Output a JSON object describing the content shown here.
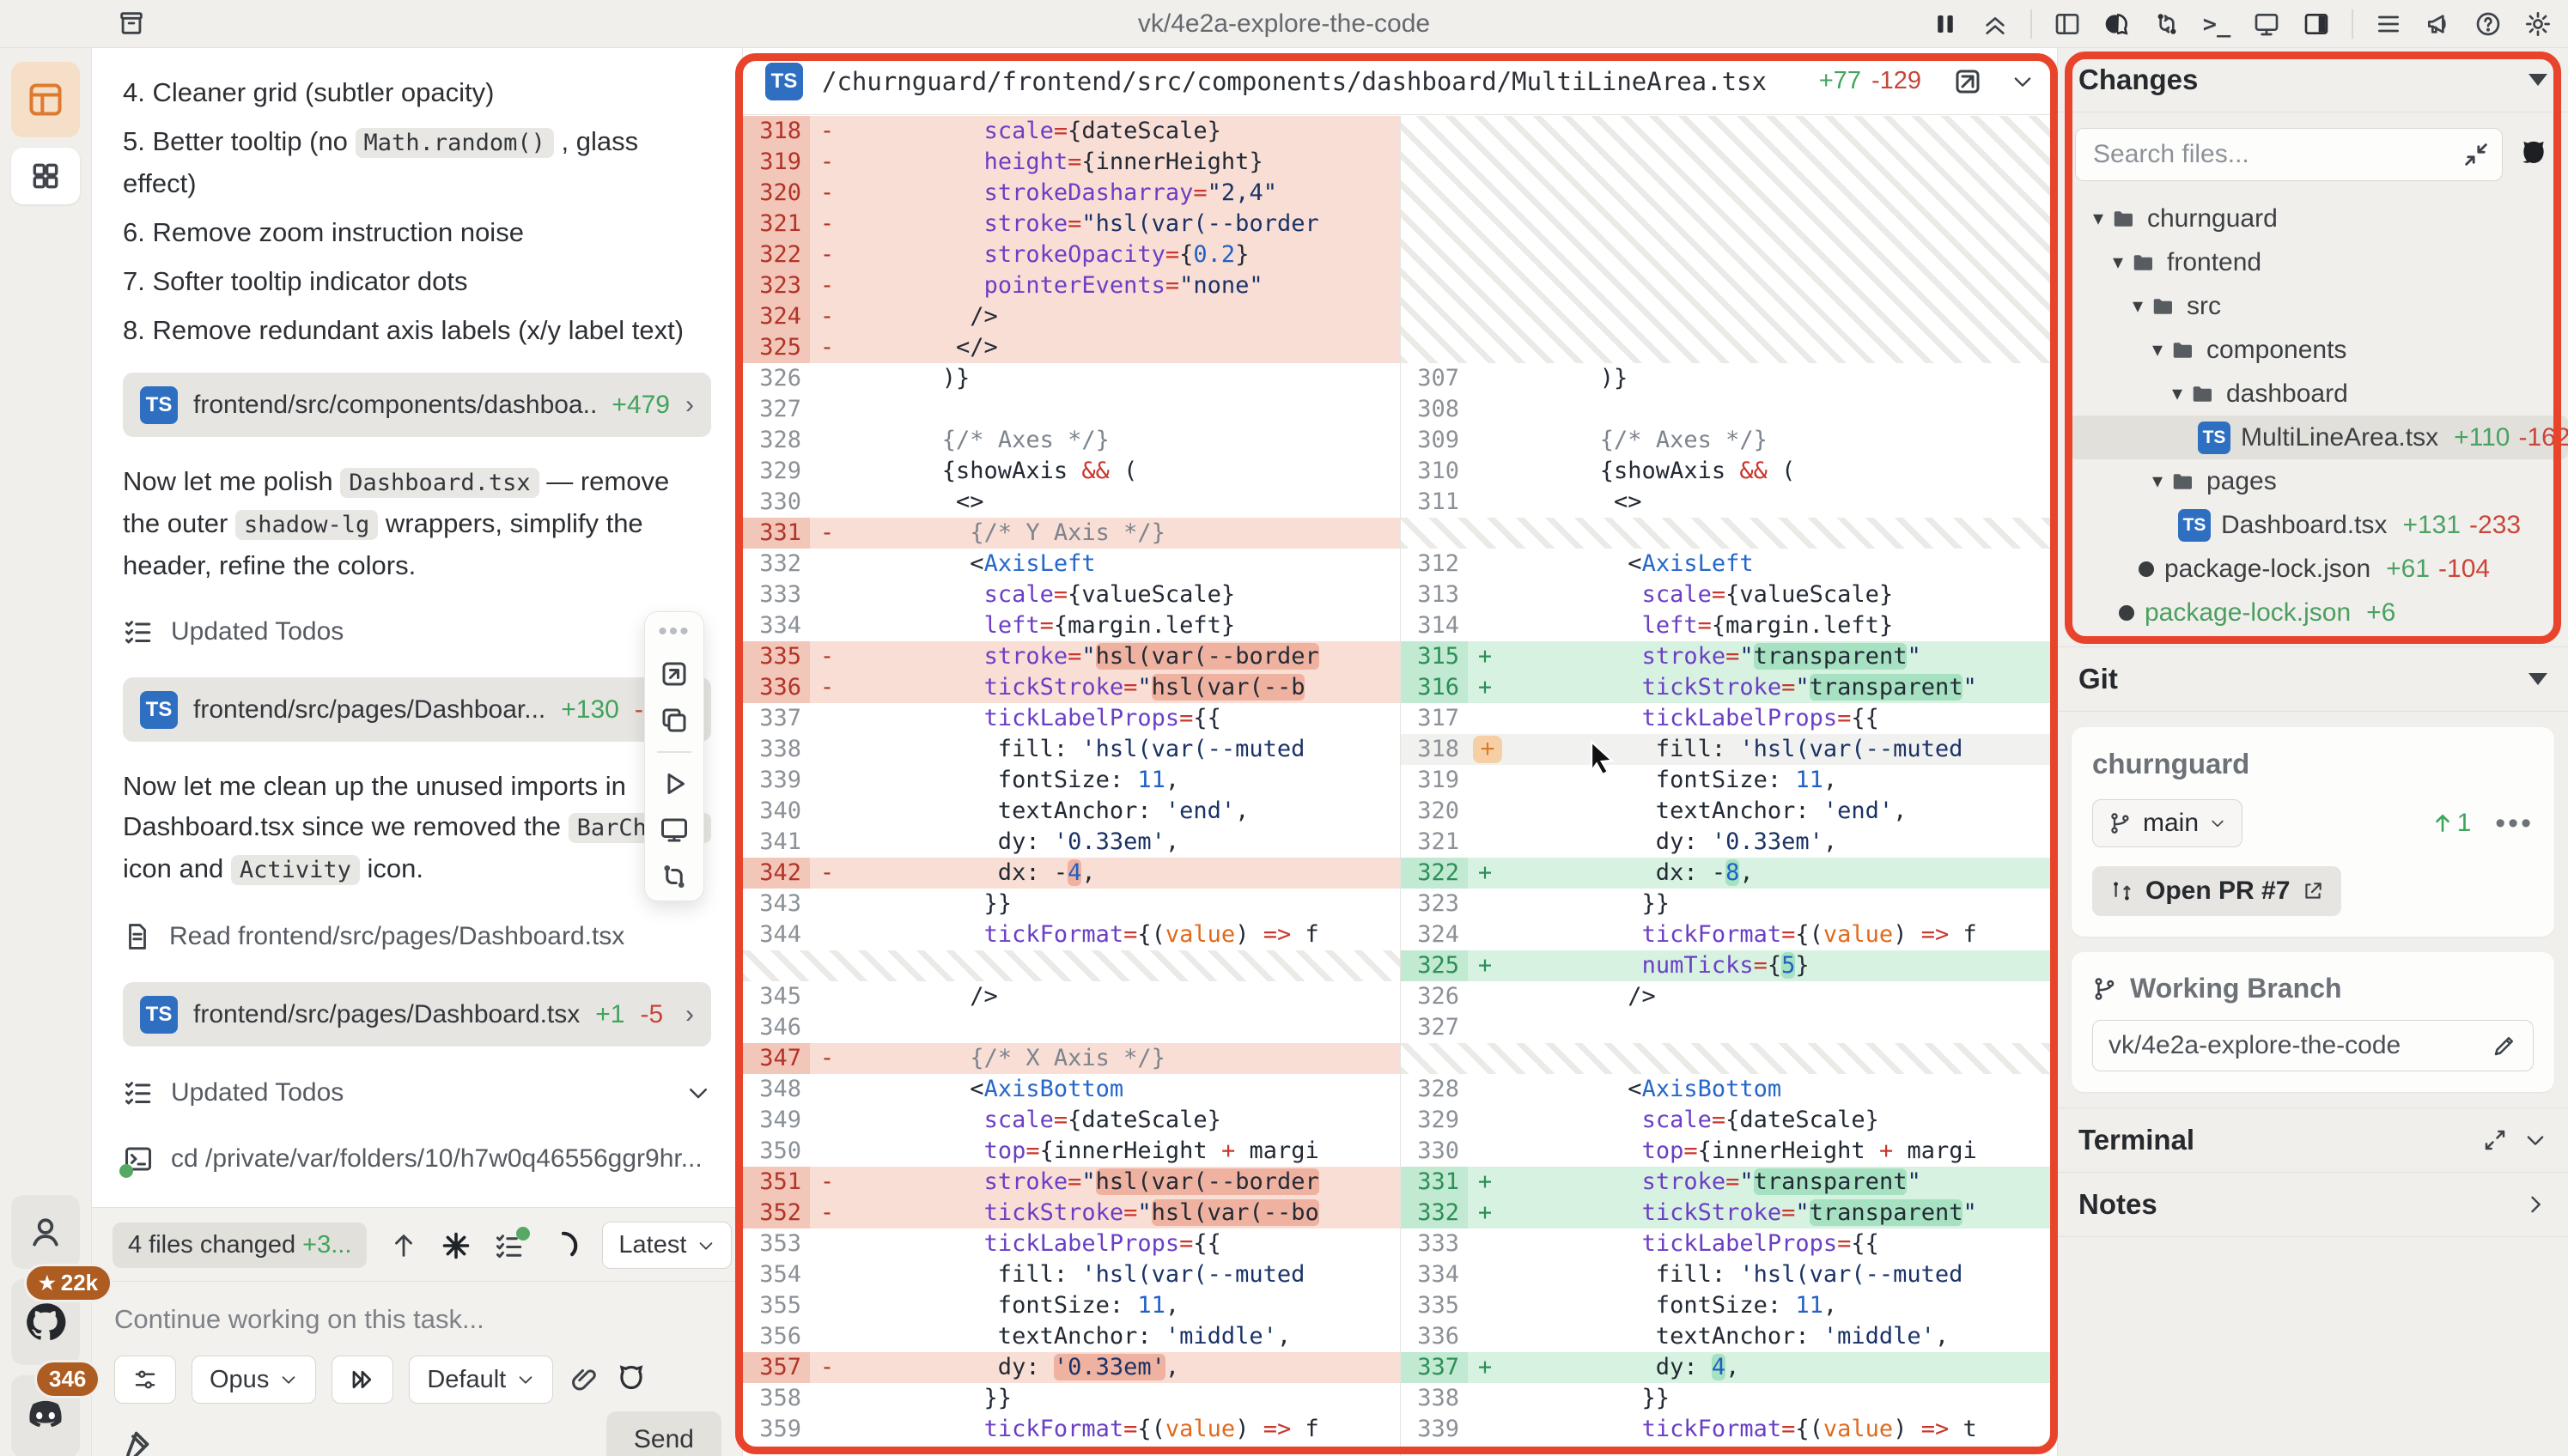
{
  "topbar": {
    "title": "vk/4e2a-explore-the-code"
  },
  "rail": {
    "github_badge": "22k",
    "discord_badge": "346"
  },
  "chat": {
    "list_items": [
      {
        "parts": [
          {
            "t": "4. Cleaner grid (subtler opacity)"
          }
        ]
      },
      {
        "parts": [
          {
            "t": "5. Better tooltip (no "
          },
          {
            "t": "Math.random()",
            "c": 1
          },
          {
            "t": " , glass effect)"
          }
        ]
      },
      {
        "parts": [
          {
            "t": "6. Remove zoom instruction noise"
          }
        ]
      },
      {
        "parts": [
          {
            "t": "7. Softer tooltip indicator dots"
          }
        ]
      },
      {
        "parts": [
          {
            "t": "8. Remove redundant axis labels (x/y label text)"
          }
        ]
      }
    ],
    "para1": {
      "parts": [
        {
          "t": "Now let me polish "
        },
        {
          "t": "Dashboard.tsx",
          "c": 1
        },
        {
          "t": " — remove the outer "
        },
        {
          "t": "shadow-lg",
          "c": 1
        },
        {
          "t": " wrappers, simplify the header, refine the colors."
        }
      ]
    },
    "para2": {
      "parts": [
        {
          "t": "Now let me clean up the unused imports in Dashboard.tsx since we removed the "
        },
        {
          "t": "BarChart3",
          "c": 1
        },
        {
          "t": " icon and "
        },
        {
          "t": "Activity",
          "c": 1
        },
        {
          "t": " icon."
        }
      ]
    },
    "chips": [
      {
        "file": "frontend/src/components/dashboa...",
        "add": "+479",
        "rem": "",
        "chev": "›"
      },
      {
        "file": "frontend/src/pages/Dashboar...",
        "add": "+130",
        "rem": "-22",
        "chev": "›"
      },
      {
        "file": "frontend/src/pages/Dashboard.tsx",
        "add": "+1",
        "rem": "-5",
        "chev": "›"
      }
    ],
    "todos1": "Updated Todos",
    "todos2": "Updated Todos",
    "read_label": "Read frontend/src/pages/Dashboard.tsx",
    "terminal_cmd": "cd /private/var/folders/10/h7w0q46556ggr9hr..."
  },
  "composer": {
    "files_chip": "4 files changed",
    "files_plus": "+3...",
    "latest": "Latest",
    "placeholder": "Continue working on this task...",
    "model": "Opus",
    "mode": "Default",
    "send": "Send"
  },
  "diff": {
    "path": "/churnguard/frontend/src/components/dashboard/MultiLineArea.tsx",
    "added": "+77",
    "removed": "-129",
    "rows": [
      {
        "l": {
          "n": "318",
          "s": "-",
          "k": "del",
          "c": "          scale={dateScale}"
        },
        "r": {
          "k": "hatch"
        }
      },
      {
        "l": {
          "n": "319",
          "s": "-",
          "k": "del",
          "c": "          height={innerHeight}"
        },
        "r": {
          "k": "hatch"
        }
      },
      {
        "l": {
          "n": "320",
          "s": "-",
          "k": "del",
          "c": "          strokeDasharray=\"2,4\""
        },
        "r": {
          "k": "hatch"
        }
      },
      {
        "l": {
          "n": "321",
          "s": "-",
          "k": "del",
          "c": "          stroke=\"hsl(var(--border"
        },
        "r": {
          "k": "hatch"
        }
      },
      {
        "l": {
          "n": "322",
          "s": "-",
          "k": "del",
          "c": "          strokeOpacity={0.2}"
        },
        "r": {
          "k": "hatch"
        }
      },
      {
        "l": {
          "n": "323",
          "s": "-",
          "k": "del",
          "c": "          pointerEvents=\"none\""
        },
        "r": {
          "k": "hatch"
        }
      },
      {
        "l": {
          "n": "324",
          "s": "-",
          "k": "del",
          "c": "         />"
        },
        "r": {
          "k": "hatch"
        }
      },
      {
        "l": {
          "n": "325",
          "s": "-",
          "k": "del",
          "c": "        </>"
        },
        "r": {
          "k": "hatch"
        }
      },
      {
        "l": {
          "n": "326",
          "k": "ctx",
          "c": "       )}"
        },
        "r": {
          "n": "307",
          "k": "ctx",
          "c": "       )}"
        }
      },
      {
        "l": {
          "n": "327",
          "k": "ctx",
          "c": ""
        },
        "r": {
          "n": "308",
          "k": "ctx",
          "c": ""
        }
      },
      {
        "l": {
          "n": "328",
          "k": "ctx",
          "c": "       {/* Axes */}"
        },
        "r": {
          "n": "309",
          "k": "ctx",
          "c": "       {/* Axes */}"
        }
      },
      {
        "l": {
          "n": "329",
          "k": "ctx",
          "c": "       {showAxis && ("
        },
        "r": {
          "n": "310",
          "k": "ctx",
          "c": "       {showAxis && ("
        }
      },
      {
        "l": {
          "n": "330",
          "k": "ctx",
          "c": "        <>"
        },
        "r": {
          "n": "311",
          "k": "ctx",
          "c": "        <>"
        }
      },
      {
        "l": {
          "n": "331",
          "s": "-",
          "k": "del",
          "c": "         {/* Y Axis */}"
        },
        "r": {
          "k": "hatch"
        }
      },
      {
        "l": {
          "n": "332",
          "k": "ctx",
          "c": "         <AxisLeft"
        },
        "r": {
          "n": "312",
          "k": "ctx",
          "c": "         <AxisLeft"
        }
      },
      {
        "l": {
          "n": "333",
          "k": "ctx",
          "c": "          scale={valueScale}"
        },
        "r": {
          "n": "313",
          "k": "ctx",
          "c": "          scale={valueScale}"
        }
      },
      {
        "l": {
          "n": "334",
          "k": "ctx",
          "c": "          left={margin.left}"
        },
        "r": {
          "n": "314",
          "k": "ctx",
          "c": "          left={margin.left}"
        }
      },
      {
        "l": {
          "n": "335",
          "s": "-",
          "k": "del",
          "c": "          stroke=\"hsl(var(--border",
          "h": "hsl(var(--border"
        },
        "r": {
          "n": "315",
          "s": "+",
          "k": "add",
          "c": "          stroke=\"transparent\"",
          "h": "transparent"
        }
      },
      {
        "l": {
          "n": "336",
          "s": "-",
          "k": "del",
          "c": "          tickStroke=\"hsl(var(--b",
          "h": "hsl(var(--b"
        },
        "r": {
          "n": "316",
          "s": "+",
          "k": "add",
          "c": "          tickStroke=\"transparent\"",
          "h": "transparent"
        }
      },
      {
        "l": {
          "n": "337",
          "k": "ctx",
          "c": "          tickLabelProps={{"
        },
        "r": {
          "n": "317",
          "k": "ctx",
          "c": "          tickLabelProps={{"
        }
      },
      {
        "l": {
          "n": "338",
          "k": "ctx",
          "c": "           fill: 'hsl(var(--muted"
        },
        "r": {
          "n": "318",
          "k": "ctx",
          "hv": 1,
          "p": 1,
          "c": "           fill: 'hsl(var(--muted"
        }
      },
      {
        "l": {
          "n": "339",
          "k": "ctx",
          "c": "           fontSize: 11,"
        },
        "r": {
          "n": "319",
          "k": "ctx",
          "c": "           fontSize: 11,"
        }
      },
      {
        "l": {
          "n": "340",
          "k": "ctx",
          "c": "           textAnchor: 'end',"
        },
        "r": {
          "n": "320",
          "k": "ctx",
          "c": "           textAnchor: 'end',"
        }
      },
      {
        "l": {
          "n": "341",
          "k": "ctx",
          "c": "           dy: '0.33em',"
        },
        "r": {
          "n": "321",
          "k": "ctx",
          "c": "           dy: '0.33em',"
        }
      },
      {
        "l": {
          "n": "342",
          "s": "-",
          "k": "del",
          "c": "           dx: -4,",
          "h": "4"
        },
        "r": {
          "n": "322",
          "s": "+",
          "k": "add",
          "c": "           dx: -8,",
          "h": "8"
        }
      },
      {
        "l": {
          "n": "343",
          "k": "ctx",
          "c": "          }}"
        },
        "r": {
          "n": "323",
          "k": "ctx",
          "c": "          }}"
        }
      },
      {
        "l": {
          "n": "344",
          "k": "ctx",
          "c": "          tickFormat={(value) => f"
        },
        "r": {
          "n": "324",
          "k": "ctx",
          "c": "          tickFormat={(value) => f"
        }
      },
      {
        "l": {
          "k": "hatch"
        },
        "r": {
          "n": "325",
          "s": "+",
          "k": "add",
          "c": "          numTicks={5}",
          "h": "5"
        }
      },
      {
        "l": {
          "n": "345",
          "k": "ctx",
          "c": "         />"
        },
        "r": {
          "n": "326",
          "k": "ctx",
          "c": "         />"
        }
      },
      {
        "l": {
          "n": "346",
          "k": "ctx",
          "c": ""
        },
        "r": {
          "n": "327",
          "k": "ctx",
          "c": ""
        }
      },
      {
        "l": {
          "n": "347",
          "s": "-",
          "k": "del",
          "c": "         {/* X Axis */}"
        },
        "r": {
          "k": "hatch"
        }
      },
      {
        "l": {
          "n": "348",
          "k": "ctx",
          "c": "         <AxisBottom"
        },
        "r": {
          "n": "328",
          "k": "ctx",
          "c": "         <AxisBottom"
        }
      },
      {
        "l": {
          "n": "349",
          "k": "ctx",
          "c": "          scale={dateScale}"
        },
        "r": {
          "n": "329",
          "k": "ctx",
          "c": "          scale={dateScale}"
        }
      },
      {
        "l": {
          "n": "350",
          "k": "ctx",
          "c": "          top={innerHeight + margi"
        },
        "r": {
          "n": "330",
          "k": "ctx",
          "c": "          top={innerHeight + margi"
        }
      },
      {
        "l": {
          "n": "351",
          "s": "-",
          "k": "del",
          "c": "          stroke=\"hsl(var(--border",
          "h": "hsl(var(--border"
        },
        "r": {
          "n": "331",
          "s": "+",
          "k": "add",
          "c": "          stroke=\"transparent\"",
          "h": "transparent"
        }
      },
      {
        "l": {
          "n": "352",
          "s": "-",
          "k": "del",
          "c": "          tickStroke=\"hsl(var(--bo",
          "h": "hsl(var(--bo"
        },
        "r": {
          "n": "332",
          "s": "+",
          "k": "add",
          "c": "          tickStroke=\"transparent\"",
          "h": "transparent"
        }
      },
      {
        "l": {
          "n": "353",
          "k": "ctx",
          "c": "          tickLabelProps={{"
        },
        "r": {
          "n": "333",
          "k": "ctx",
          "c": "          tickLabelProps={{"
        }
      },
      {
        "l": {
          "n": "354",
          "k": "ctx",
          "c": "           fill: 'hsl(var(--muted"
        },
        "r": {
          "n": "334",
          "k": "ctx",
          "c": "           fill: 'hsl(var(--muted"
        }
      },
      {
        "l": {
          "n": "355",
          "k": "ctx",
          "c": "           fontSize: 11,"
        },
        "r": {
          "n": "335",
          "k": "ctx",
          "c": "           fontSize: 11,"
        }
      },
      {
        "l": {
          "n": "356",
          "k": "ctx",
          "c": "           textAnchor: 'middle',"
        },
        "r": {
          "n": "336",
          "k": "ctx",
          "c": "           textAnchor: 'middle',"
        }
      },
      {
        "l": {
          "n": "357",
          "s": "-",
          "k": "del",
          "c": "           dy: '0.33em',",
          "h": "'0.33em'"
        },
        "r": {
          "n": "337",
          "s": "+",
          "k": "add",
          "c": "           dy: 4,",
          "h": "4"
        }
      },
      {
        "l": {
          "n": "358",
          "k": "ctx",
          "c": "          }}"
        },
        "r": {
          "n": "338",
          "k": "ctx",
          "c": "          }}"
        }
      },
      {
        "l": {
          "n": "359",
          "k": "ctx",
          "c": "          tickFormat={(value) => f"
        },
        "r": {
          "n": "339",
          "k": "ctx",
          "c": "          tickFormat={(value) => t"
        }
      }
    ]
  },
  "changes": {
    "title": "Changes",
    "search_placeholder": "Search files...",
    "tree": [
      {
        "label": "churnguard",
        "type": "folder",
        "depth": 0
      },
      {
        "label": "frontend",
        "type": "folder",
        "depth": 1
      },
      {
        "label": "src",
        "type": "folder",
        "depth": 2
      },
      {
        "label": "components",
        "type": "folder",
        "depth": 3
      },
      {
        "label": "dashboard",
        "type": "folder",
        "depth": 4
      },
      {
        "label": "MultiLineArea.tsx",
        "type": "ts",
        "depth": 5,
        "add": "+110",
        "rem": "-162",
        "selected": true
      },
      {
        "label": "pages",
        "type": "folder",
        "depth": 3
      },
      {
        "label": "Dashboard.tsx",
        "type": "ts",
        "depth": 4,
        "add": "+131",
        "rem": "-233"
      },
      {
        "label": "package-lock.json",
        "type": "lock",
        "depth": 2,
        "add": "+61",
        "rem": "-104"
      },
      {
        "label": "package-lock.json",
        "type": "lock",
        "depth": 1,
        "add": "+6",
        "green": true
      }
    ]
  },
  "git": {
    "title": "Git",
    "repo": "churnguard",
    "branch": "main",
    "ahead": "1",
    "pr_label": "Open PR #7",
    "wb_label": "Working Branch",
    "wb_value": "vk/4e2a-explore-the-code"
  },
  "sections": {
    "terminal": "Terminal",
    "notes": "Notes"
  }
}
